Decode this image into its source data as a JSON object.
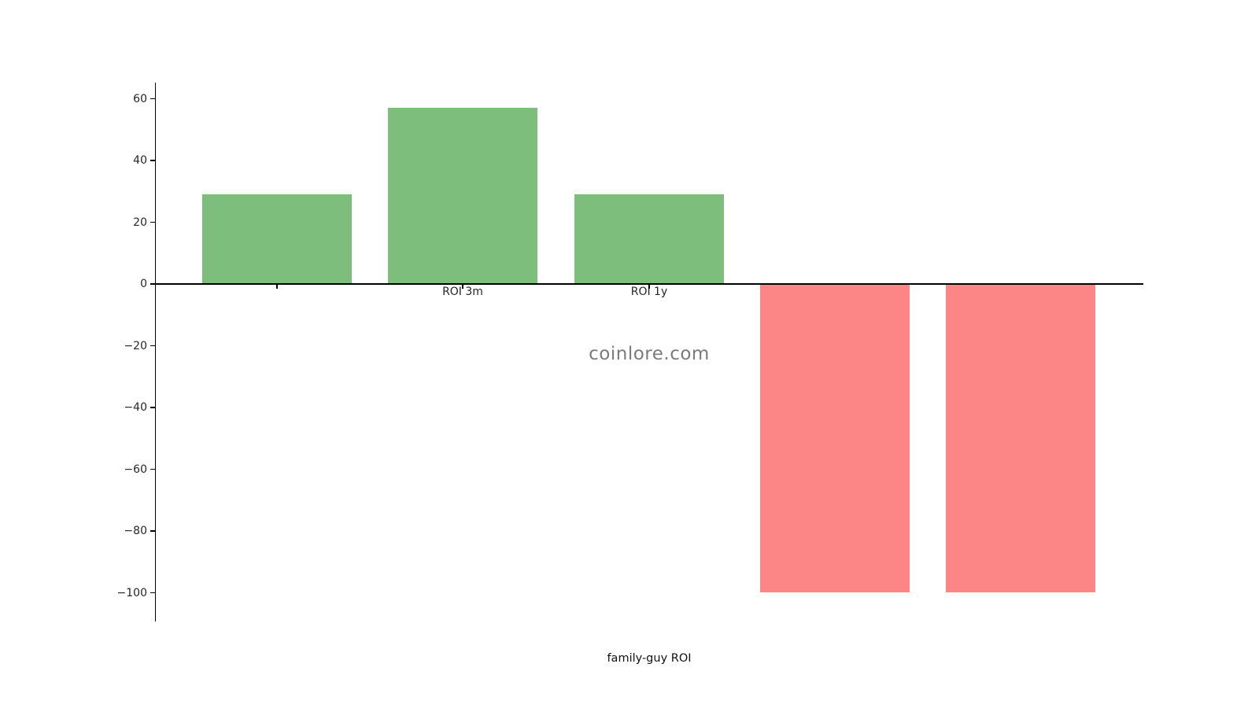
{
  "watermark": {
    "text": "coinlore.com",
    "color": "#7b7b7b"
  },
  "chart_data": {
    "type": "bar",
    "title": "family-guy ROI",
    "watermark": "coinlore.com",
    "categories": [
      "",
      "ROI 3m",
      "ROI 1y",
      "",
      ""
    ],
    "values": [
      29,
      57,
      29,
      -100,
      -100
    ],
    "series": [
      {
        "name": "family-guy ROI %",
        "values": [
          29,
          57,
          29,
          -100,
          -100
        ]
      }
    ],
    "positive_color": "#7dbe7c",
    "negative_color": "#fc8585",
    "axis_color": "#000000",
    "text_color": "#262626",
    "yticks": [
      60,
      40,
      20,
      0,
      -20,
      -40,
      -60,
      -80,
      -100
    ],
    "ytick_labels": [
      "60",
      "40",
      "20",
      "0",
      "−20",
      "−40",
      "−60",
      "−80",
      "−100"
    ],
    "ylim": [
      -110,
      65
    ],
    "xlabel": "family-guy ROI",
    "ylabel": "",
    "grid": false,
    "legend": false,
    "visible_x_tick_labels": [
      "ROI 3m",
      "ROI 1y"
    ]
  }
}
